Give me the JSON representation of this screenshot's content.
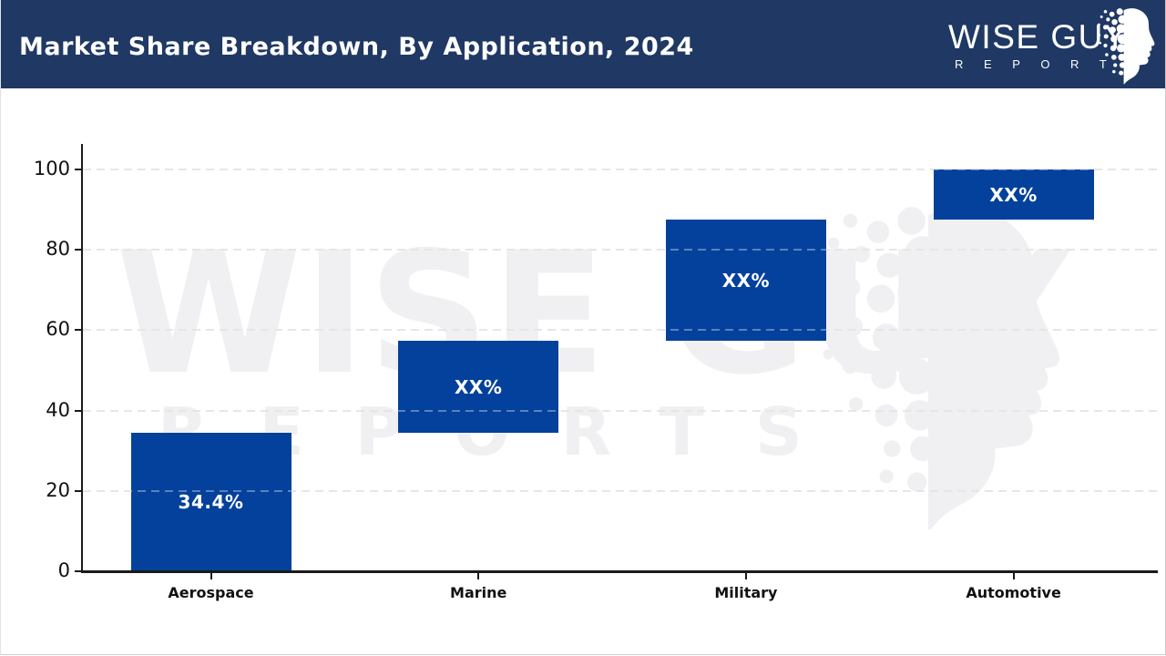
{
  "header": {
    "title": "Market Share Breakdown, By Application, 2024",
    "logo": {
      "line1": "WISE GUY",
      "line2": "REPORTS"
    }
  },
  "watermark": {
    "line1": "WISE GUY",
    "line2": "REPORTS"
  },
  "chart_data": {
    "type": "bar",
    "subtype": "waterfall",
    "title": "Market Share Breakdown, By Application, 2024",
    "categories": [
      "Aerospace",
      "Marine",
      "Military",
      "Automotive"
    ],
    "series": [
      {
        "name": "Market Share",
        "segments": [
          {
            "category": "Aerospace",
            "start": 0,
            "end": 34.4,
            "label": "34.4%"
          },
          {
            "category": "Marine",
            "start": 34.4,
            "end": 57.3,
            "label": "XX%"
          },
          {
            "category": "Military",
            "start": 57.3,
            "end": 87.5,
            "label": "XX%"
          },
          {
            "category": "Automotive",
            "start": 87.5,
            "end": 100,
            "label": "XX%"
          }
        ]
      }
    ],
    "xlabel": "",
    "ylabel": "",
    "ylim": [
      0,
      106
    ],
    "yticks": [
      0,
      20,
      40,
      60,
      80,
      100
    ],
    "grid": "horizontal-dashed",
    "legend": "none",
    "bar_color": "#04419c",
    "bar_label_color": "#ffffff"
  },
  "colors": {
    "header_bg": "#1f3864",
    "bar": "#04419c",
    "axis": "#1a1a1a",
    "grid": "#d9d9d9",
    "watermark": "#f0f0f2",
    "page_bg": "#ffffff"
  }
}
